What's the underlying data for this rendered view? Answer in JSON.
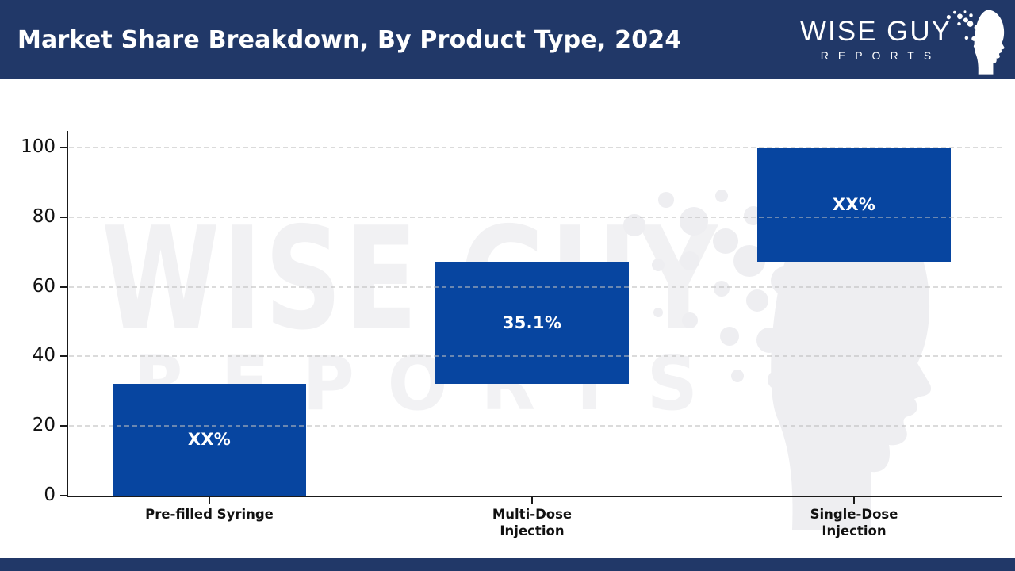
{
  "header": {
    "title": "Market Share Breakdown, By Product Type, 2024",
    "logo": {
      "line1": "WISE GUY",
      "line2": "REPORTS"
    }
  },
  "watermark": {
    "line1": "WISE GUY",
    "line2": "REPORTS"
  },
  "chart_data": {
    "type": "bar",
    "subtype": "floating-waterfall",
    "title": "Market Share Breakdown, By Product Type, 2024",
    "categories": [
      "Pre-filled Syringe",
      "Multi-Dose\nInjection",
      "Single-Dose\nInjection"
    ],
    "segments": [
      {
        "category": "Pre-filled Syringe",
        "from": 0,
        "to": 32.2,
        "label": "XX%"
      },
      {
        "category": "Multi-Dose\nInjection",
        "from": 32.2,
        "to": 67.3,
        "label": "35.1%"
      },
      {
        "category": "Single-Dose\nInjection",
        "from": 67.3,
        "to": 99.8,
        "label": "XX%"
      }
    ],
    "bar_labels": [
      "XX%",
      "35.1%",
      "XX%"
    ],
    "xlabel": "",
    "ylabel": "",
    "ylim": [
      0,
      100
    ],
    "yticks": [
      0,
      20,
      40,
      60,
      80,
      100
    ],
    "grid": "horizontal-dashed",
    "legend": "none"
  },
  "colors": {
    "header_bg": "#213868",
    "footer_bg": "#213868",
    "bar": "#0745a0",
    "bar_label": "#ffffff",
    "axis": "#1a1a1a",
    "gridline": "#cfcfcf",
    "watermark": "#f1f1f3",
    "title_text": "#ffffff"
  }
}
